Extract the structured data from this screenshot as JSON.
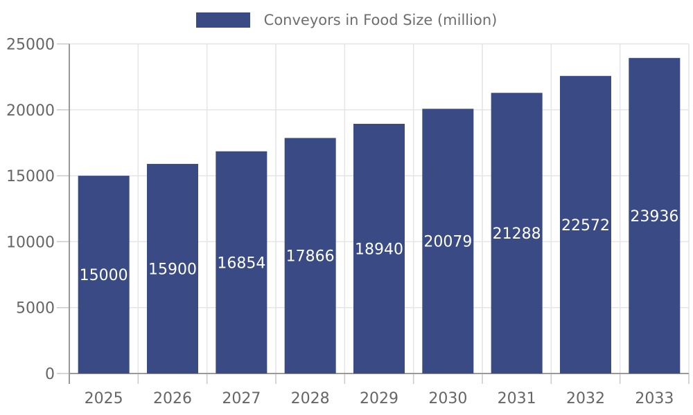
{
  "legend": {
    "label": "Conveyors in Food Size (million)"
  },
  "chart_data": {
    "type": "bar",
    "title": "Conveyors in Food Size (million)",
    "categories": [
      "2025",
      "2026",
      "2027",
      "2028",
      "2029",
      "2030",
      "2031",
      "2032",
      "2033"
    ],
    "values": [
      15000,
      15900,
      16854,
      17866,
      18940,
      20079,
      21288,
      22572,
      23936
    ],
    "xlabel": "",
    "ylabel": "",
    "ylim": [
      0,
      25000
    ],
    "yticks": [
      0,
      5000,
      10000,
      15000,
      20000,
      25000
    ],
    "grid": true,
    "legend_position": "top-center",
    "bar_color": "#394A85",
    "bar_label_color": "#FFFFFF",
    "axis_text_color": "#666666",
    "title_color": "#6E6E6E",
    "gridline_color": "#E4E4E9",
    "axis_line_color": "#999999",
    "tick_mark_color": "#C9C9CE"
  }
}
